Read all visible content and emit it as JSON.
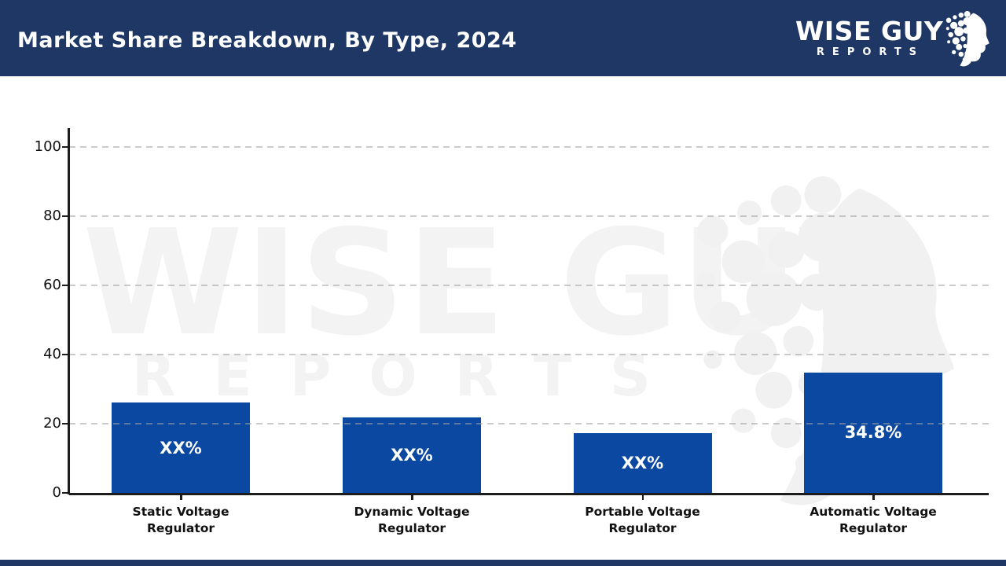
{
  "header": {
    "title": "Market Share Breakdown, By Type, 2024",
    "logo": {
      "line1": "WISE GUY",
      "line2": "REPORTS",
      "face_icon": "dotted-face-profile"
    }
  },
  "watermark": {
    "line1": "WISE GUY",
    "line2": "REPORTS",
    "face_icon": "dotted-face-profile"
  },
  "chart_data": {
    "type": "bar",
    "subtype": "stacked-percentage-waterfall",
    "title": "Market Share Breakdown, By Type, 2024",
    "categories": [
      "Static Voltage Regulator",
      "Dynamic Voltage Regulator",
      "Portable Voltage Regulator",
      "Automatic Voltage Regulator"
    ],
    "values": [
      26.1,
      21.8,
      17.3,
      34.8
    ],
    "cumulative": true,
    "bar_labels": [
      "XX%",
      "XX%",
      "XX%",
      "34.8%"
    ],
    "yticks": [
      0,
      20,
      40,
      60,
      80,
      100
    ],
    "ylim": [
      0,
      105
    ],
    "xlabel": "",
    "ylabel": "",
    "grid": "horizontal-dashed",
    "legend": "none",
    "colors": {
      "bar": "#0b48a2",
      "bar_label_text": "#ffffff",
      "axis": "#1c1c1c",
      "grid": "#d9d9d9",
      "header_bg": "#1e3764",
      "footer_bg": "#1e3764",
      "watermark": "#f3f3f3",
      "tick_text": "#111111"
    }
  }
}
